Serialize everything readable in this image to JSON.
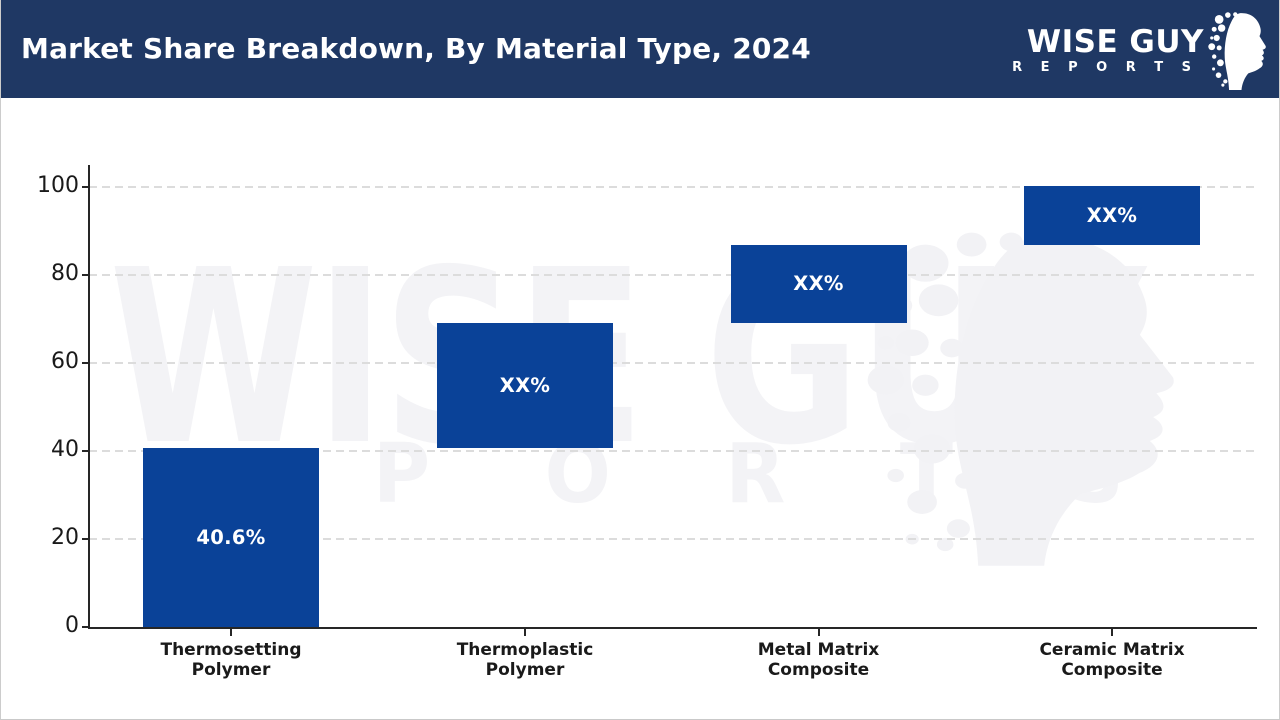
{
  "header": {
    "title": "Market Share Breakdown, By Material Type, 2024",
    "logo": {
      "brand": "WISE GUY",
      "sub": "REPORTS"
    }
  },
  "watermark": {
    "text_main": "WISE GUY",
    "text_sub": "PORTS"
  },
  "chart_data": {
    "type": "bar",
    "subtype": "waterfall-step",
    "title": "Market Share Breakdown, By Material Type, 2024",
    "categories": [
      "Thermosetting\nPolymer",
      "Thermoplastic\nPolymer",
      "Metal Matrix\nComposite",
      "Ceramic Matrix\nComposite"
    ],
    "segments": [
      {
        "category": "Thermosetting Polymer",
        "start": 0,
        "end": 40.6,
        "label": "40.6%"
      },
      {
        "category": "Thermoplastic Polymer",
        "start": 40.6,
        "end": 69.2,
        "label": "XX%"
      },
      {
        "category": "Metal Matrix Composite",
        "start": 69.2,
        "end": 86.8,
        "label": "XX%"
      },
      {
        "category": "Ceramic Matrix Composite",
        "start": 86.8,
        "end": 100.3,
        "label": "XX%"
      }
    ],
    "xlabel": "",
    "ylabel": "",
    "yticks": [
      0,
      20,
      40,
      60,
      80,
      100
    ],
    "ylim": [
      0,
      105
    ],
    "grid": "horizontal-dashed",
    "legend": "none"
  },
  "colors": {
    "header_bg": "#1f3864",
    "bar": "#0a4298",
    "bar_value_text": "#ffffff",
    "grid": "#dcdcdc",
    "axis": "#262626",
    "tick_text": "#1a1a1a",
    "watermark": "#f3f3f6"
  }
}
